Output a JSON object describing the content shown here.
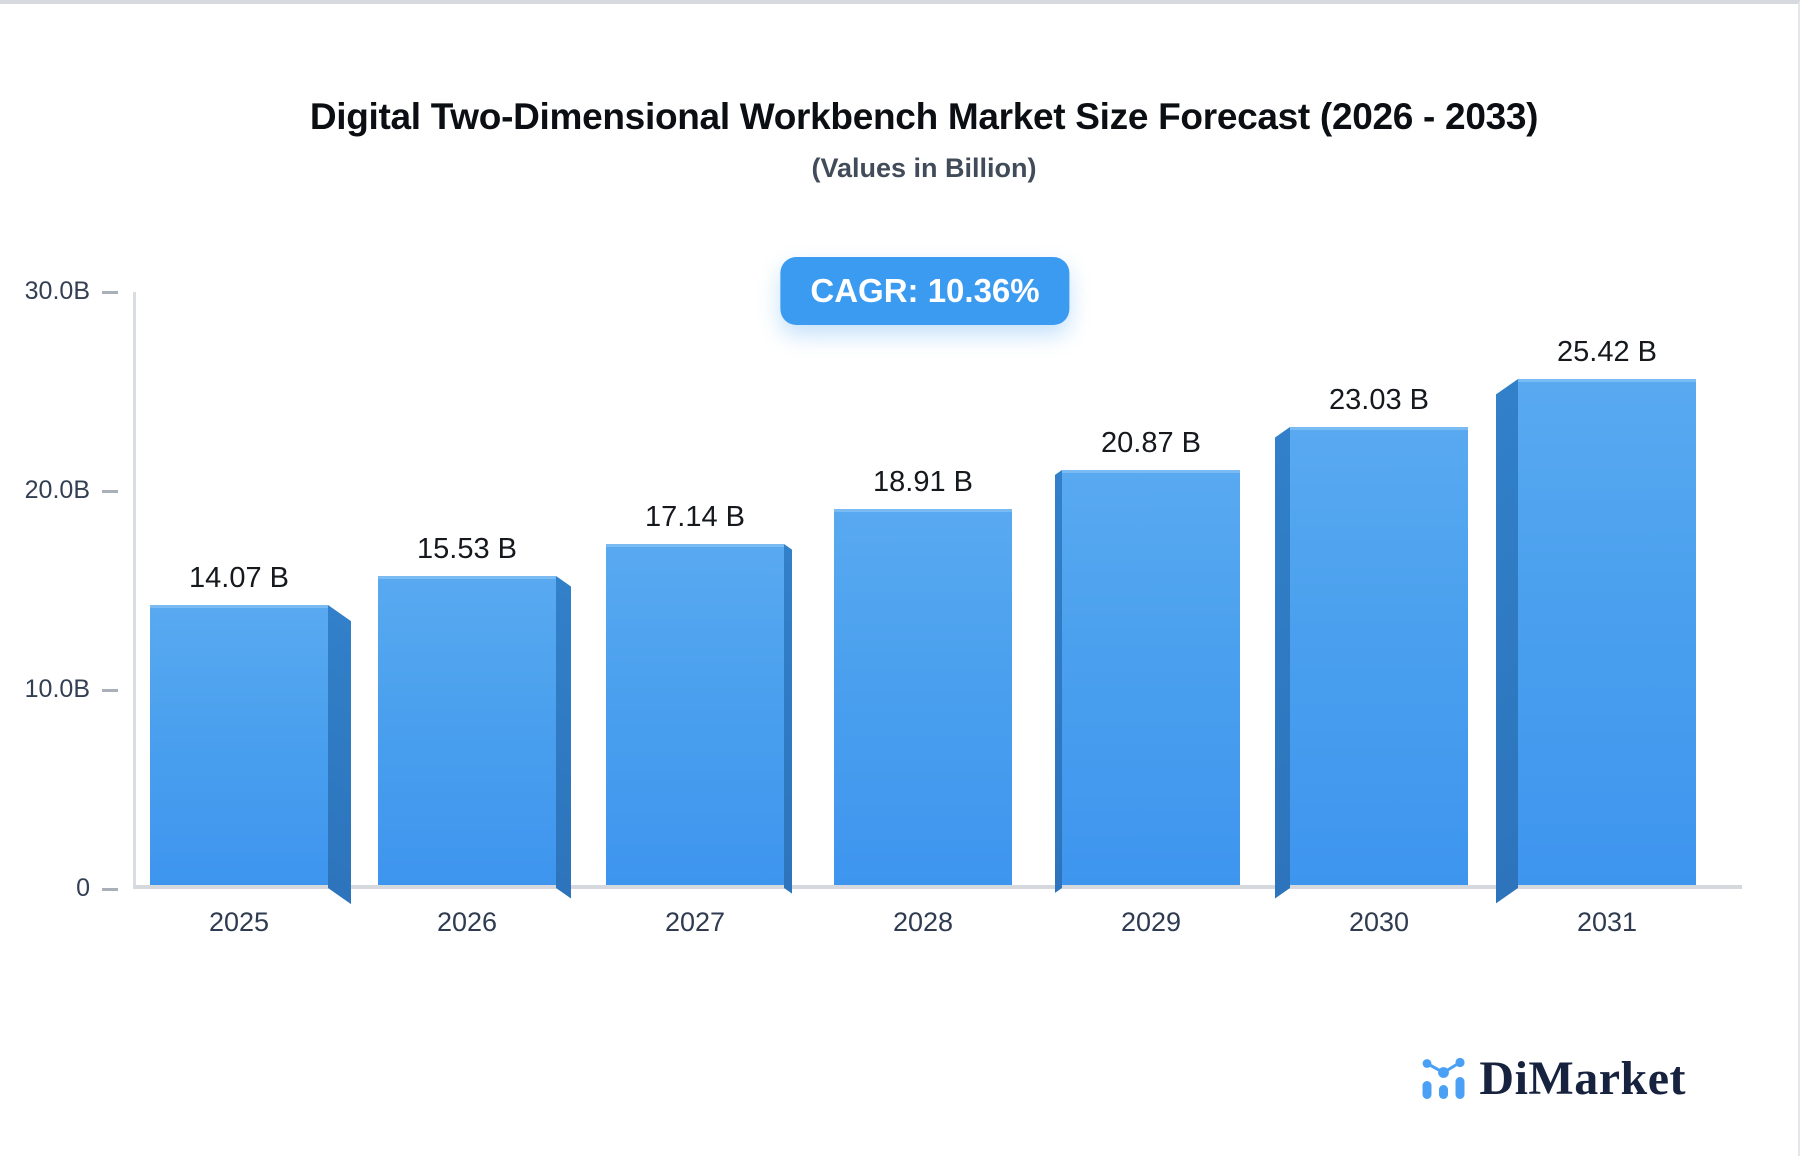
{
  "header": {
    "title": "Digital Two-Dimensional Workbench Market Size Forecast (2026 - 2033)",
    "subtitle": "(Values in Billion)",
    "cagr_label": "CAGR: 10.36%"
  },
  "chart_data": {
    "type": "bar",
    "title": "Digital Two-Dimensional Workbench Market Size Forecast (2026 - 2033)",
    "subtitle": "(Values in Billion)",
    "annotation": "CAGR: 10.36%",
    "categories": [
      "2025",
      "2026",
      "2027",
      "2028",
      "2029",
      "2030",
      "2031"
    ],
    "values": [
      14.07,
      15.53,
      17.14,
      18.91,
      20.87,
      23.03,
      25.42
    ],
    "value_labels": [
      "14.07 B",
      "15.53 B",
      "17.14 B",
      "18.91 B",
      "20.87 B",
      "23.03 B",
      "25.42 B"
    ],
    "xlabel": "",
    "ylabel": "",
    "ylim": [
      0,
      30
    ],
    "yticks": [
      {
        "value": 30,
        "label": "30.0B"
      },
      {
        "value": 20,
        "label": "20.0B"
      },
      {
        "value": 10,
        "label": "10.0B"
      },
      {
        "value": 0,
        "label": "0"
      }
    ],
    "grid": false,
    "legend": false,
    "style_3d_perspective": true,
    "colors": {
      "bar_face_top": "#58a9f0",
      "bar_face_bottom": "#3e95ee",
      "bar_top_highlight": "#7abbf4",
      "bar_side": "#2d74bc",
      "axis_line": "#d9dde2",
      "tick_dash": "#a9b0ba",
      "tick_text": "#333f52",
      "value_text": "#15181d",
      "badge_bg": "#3b9bf1",
      "badge_text": "#ffffff"
    }
  },
  "logo": {
    "text": "DiMarket",
    "icon_color": "#4aa0f5"
  }
}
